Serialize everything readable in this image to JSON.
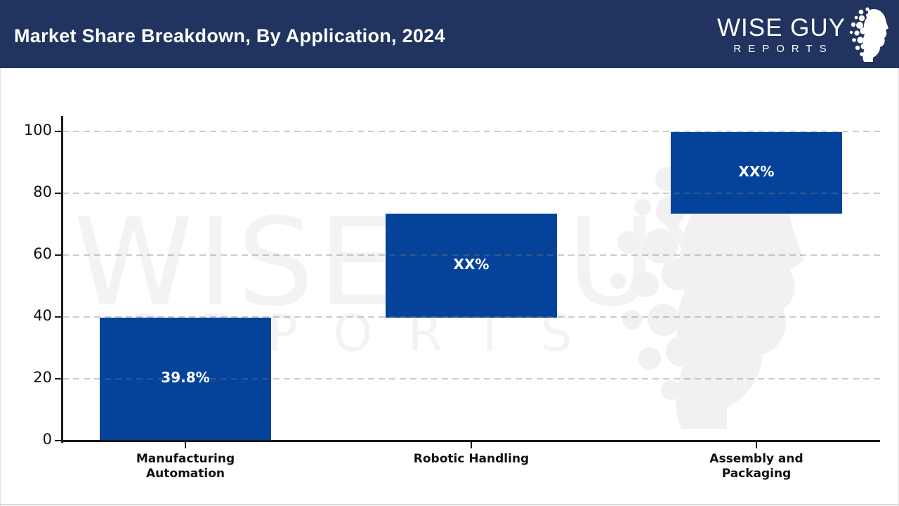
{
  "header": {
    "title": "Market Share Breakdown, By Application, 2024",
    "logo": {
      "line1": "WISE GUY",
      "line2": "REPORTS"
    },
    "bg_color": "#20345f"
  },
  "watermark": {
    "line1": "WISE GUY",
    "line2": "REPORTS"
  },
  "chart_data": {
    "type": "bar",
    "subtype": "waterfall",
    "title": "Market Share Breakdown, By Application, 2024",
    "categories": [
      "Manufacturing Automation",
      "Robotic Handling",
      "Assembly and Packaging"
    ],
    "category_lines": [
      [
        "Manufacturing",
        "Automation"
      ],
      [
        "Robotic Handling"
      ],
      [
        "Assembly and",
        "Packaging"
      ]
    ],
    "segments": [
      {
        "category": "Manufacturing Automation",
        "start": 0,
        "end": 39.8,
        "label": "39.8%"
      },
      {
        "category": "Robotic Handling",
        "start": 39.8,
        "end": 73.5,
        "label": "XX%"
      },
      {
        "category": "Assembly and Packaging",
        "start": 73.5,
        "end": 99.8,
        "label": "XX%"
      }
    ],
    "yticks": [
      0,
      20,
      40,
      60,
      80,
      100
    ],
    "ylim": [
      0,
      105
    ],
    "xlabel": "",
    "ylabel": "",
    "grid": "horizontal dashed, drawn over bars",
    "legend": "none",
    "bar_color": "#05439b",
    "value_label_color": "#ffffff",
    "axis_color": "#1a1a1a"
  }
}
